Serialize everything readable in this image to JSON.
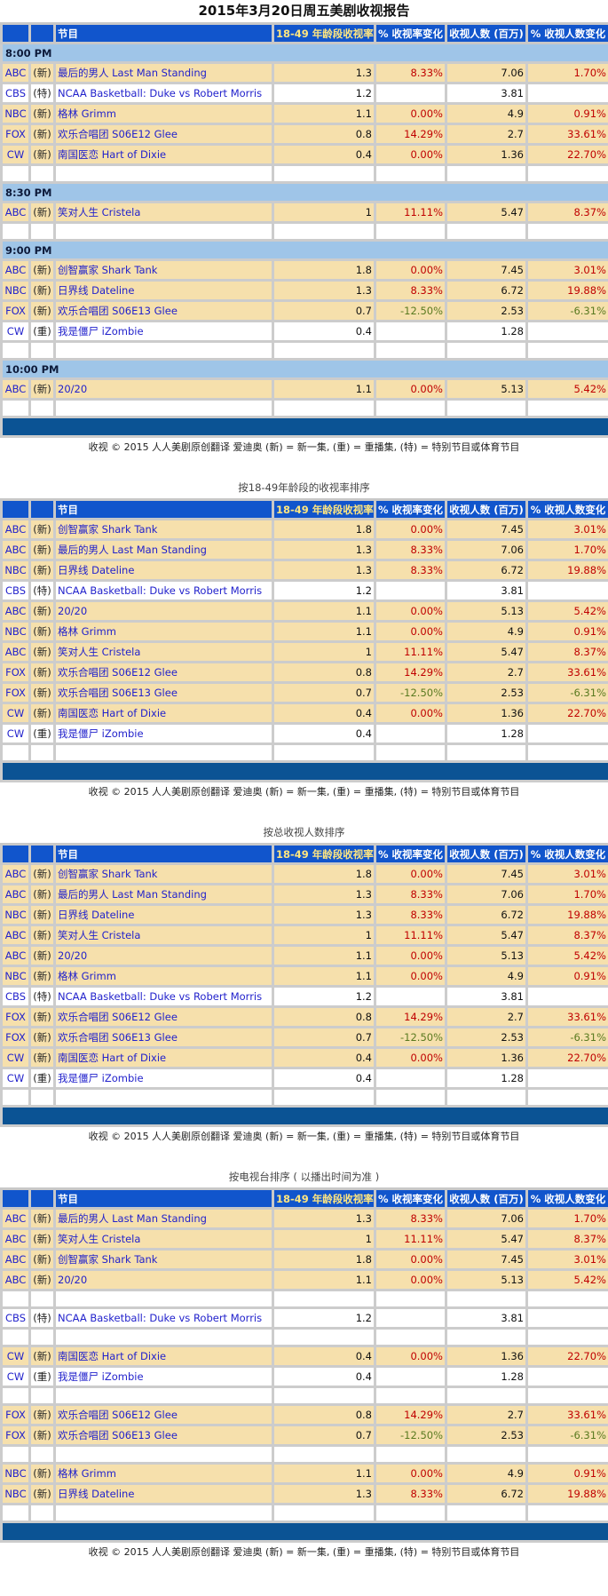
{
  "page_title": "2015年3月20日周五美剧收视报告",
  "headers": [
    "",
    "",
    "节目",
    "18-49 年龄段收视率",
    "% 收视率变化",
    "收视人数 (百万)",
    "% 收视人数变化"
  ],
  "footer_note": "收视 © 2015 人人美剧原创翻译 爱迪奥  (新) = 新一集, (重) = 重播集, (特) = 特别节目或体育节目",
  "colors": {
    "header_bg": "#1155cc",
    "slot_bg": "#9fc5e8",
    "row_bg": "#f6e0ac",
    "bar_bg": "#0b5394",
    "positive": "#c00000",
    "negative": "#5a7a20",
    "link": "#2222cc"
  },
  "tables": [
    {
      "title": "",
      "rows": [
        {
          "type": "slot",
          "label": "8:00 PM"
        },
        {
          "type": "row",
          "net": "ABC",
          "tag": "(新)",
          "prog": "最后的男人 Last Man Standing",
          "rating": "1.3",
          "rchg": "8.33%",
          "viewers": "7.06",
          "vchg": "1.70%"
        },
        {
          "type": "row",
          "plain": true,
          "net": "CBS",
          "tag": "(特)",
          "prog": "NCAA Basketball: Duke vs Robert Morris",
          "rating": "1.2",
          "rchg": "",
          "viewers": "3.81",
          "vchg": ""
        },
        {
          "type": "row",
          "net": "NBC",
          "tag": "(新)",
          "prog": "格林 Grimm",
          "rating": "1.1",
          "rchg": "0.00%",
          "viewers": "4.9",
          "vchg": "0.91%"
        },
        {
          "type": "row",
          "net": "FOX",
          "tag": "(新)",
          "prog": "欢乐合唱团 S06E12 Glee",
          "rating": "0.8",
          "rchg": "14.29%",
          "viewers": "2.7",
          "vchg": "33.61%"
        },
        {
          "type": "row",
          "net": "CW",
          "tag": "(新)",
          "prog": "南国医恋 Hart of Dixie",
          "rating": "0.4",
          "rchg": "0.00%",
          "viewers": "1.36",
          "vchg": "22.70%"
        },
        {
          "type": "empty"
        },
        {
          "type": "slot",
          "label": "8:30 PM"
        },
        {
          "type": "row",
          "net": "ABC",
          "tag": "(新)",
          "prog": "笑对人生 Cristela",
          "rating": "1",
          "rchg": "11.11%",
          "viewers": "5.47",
          "vchg": "8.37%"
        },
        {
          "type": "empty"
        },
        {
          "type": "slot",
          "label": "9:00 PM"
        },
        {
          "type": "row",
          "net": "ABC",
          "tag": "(新)",
          "prog": "创智赢家 Shark Tank",
          "rating": "1.8",
          "rchg": "0.00%",
          "viewers": "7.45",
          "vchg": "3.01%"
        },
        {
          "type": "row",
          "net": "NBC",
          "tag": "(新)",
          "prog": "日界线 Dateline",
          "rating": "1.3",
          "rchg": "8.33%",
          "viewers": "6.72",
          "vchg": "19.88%"
        },
        {
          "type": "row",
          "net": "FOX",
          "tag": "(新)",
          "prog": "欢乐合唱团 S06E13 Glee",
          "rating": "0.7",
          "rchg": "-12.50%",
          "viewers": "2.53",
          "vchg": "-6.31%"
        },
        {
          "type": "row",
          "plain": true,
          "net": "CW",
          "tag": "(重)",
          "prog": "我是僵尸 iZombie",
          "rating": "0.4",
          "rchg": "",
          "viewers": "1.28",
          "vchg": ""
        },
        {
          "type": "empty"
        },
        {
          "type": "slot",
          "label": "10:00 PM"
        },
        {
          "type": "row",
          "net": "ABC",
          "tag": "(新)",
          "prog": "20/20",
          "rating": "1.1",
          "rchg": "0.00%",
          "viewers": "5.13",
          "vchg": "5.42%"
        },
        {
          "type": "empty"
        },
        {
          "type": "bar"
        }
      ]
    },
    {
      "title": "按18-49年龄段的收视率排序",
      "rows": [
        {
          "type": "row",
          "net": "ABC",
          "tag": "(新)",
          "prog": "创智赢家 Shark Tank",
          "rating": "1.8",
          "rchg": "0.00%",
          "viewers": "7.45",
          "vchg": "3.01%"
        },
        {
          "type": "row",
          "net": "ABC",
          "tag": "(新)",
          "prog": "最后的男人 Last Man Standing",
          "rating": "1.3",
          "rchg": "8.33%",
          "viewers": "7.06",
          "vchg": "1.70%"
        },
        {
          "type": "row",
          "net": "NBC",
          "tag": "(新)",
          "prog": "日界线 Dateline",
          "rating": "1.3",
          "rchg": "8.33%",
          "viewers": "6.72",
          "vchg": "19.88%"
        },
        {
          "type": "row",
          "plain": true,
          "net": "CBS",
          "tag": "(特)",
          "prog": "NCAA Basketball: Duke vs Robert Morris",
          "rating": "1.2",
          "rchg": "",
          "viewers": "3.81",
          "vchg": ""
        },
        {
          "type": "row",
          "net": "ABC",
          "tag": "(新)",
          "prog": "20/20",
          "rating": "1.1",
          "rchg": "0.00%",
          "viewers": "5.13",
          "vchg": "5.42%"
        },
        {
          "type": "row",
          "net": "NBC",
          "tag": "(新)",
          "prog": "格林 Grimm",
          "rating": "1.1",
          "rchg": "0.00%",
          "viewers": "4.9",
          "vchg": "0.91%"
        },
        {
          "type": "row",
          "net": "ABC",
          "tag": "(新)",
          "prog": "笑对人生 Cristela",
          "rating": "1",
          "rchg": "11.11%",
          "viewers": "5.47",
          "vchg": "8.37%"
        },
        {
          "type": "row",
          "net": "FOX",
          "tag": "(新)",
          "prog": "欢乐合唱团 S06E12 Glee",
          "rating": "0.8",
          "rchg": "14.29%",
          "viewers": "2.7",
          "vchg": "33.61%"
        },
        {
          "type": "row",
          "net": "FOX",
          "tag": "(新)",
          "prog": "欢乐合唱团 S06E13 Glee",
          "rating": "0.7",
          "rchg": "-12.50%",
          "viewers": "2.53",
          "vchg": "-6.31%"
        },
        {
          "type": "row",
          "net": "CW",
          "tag": "(新)",
          "prog": "南国医恋 Hart of Dixie",
          "rating": "0.4",
          "rchg": "0.00%",
          "viewers": "1.36",
          "vchg": "22.70%"
        },
        {
          "type": "row",
          "plain": true,
          "net": "CW",
          "tag": "(重)",
          "prog": "我是僵尸 iZombie",
          "rating": "0.4",
          "rchg": "",
          "viewers": "1.28",
          "vchg": ""
        },
        {
          "type": "empty"
        },
        {
          "type": "bar"
        }
      ]
    },
    {
      "title": "按总收视人数排序",
      "rows": [
        {
          "type": "row",
          "net": "ABC",
          "tag": "(新)",
          "prog": "创智赢家 Shark Tank",
          "rating": "1.8",
          "rchg": "0.00%",
          "viewers": "7.45",
          "vchg": "3.01%"
        },
        {
          "type": "row",
          "net": "ABC",
          "tag": "(新)",
          "prog": "最后的男人 Last Man Standing",
          "rating": "1.3",
          "rchg": "8.33%",
          "viewers": "7.06",
          "vchg": "1.70%"
        },
        {
          "type": "row",
          "net": "NBC",
          "tag": "(新)",
          "prog": "日界线 Dateline",
          "rating": "1.3",
          "rchg": "8.33%",
          "viewers": "6.72",
          "vchg": "19.88%"
        },
        {
          "type": "row",
          "net": "ABC",
          "tag": "(新)",
          "prog": "笑对人生 Cristela",
          "rating": "1",
          "rchg": "11.11%",
          "viewers": "5.47",
          "vchg": "8.37%"
        },
        {
          "type": "row",
          "net": "ABC",
          "tag": "(新)",
          "prog": "20/20",
          "rating": "1.1",
          "rchg": "0.00%",
          "viewers": "5.13",
          "vchg": "5.42%"
        },
        {
          "type": "row",
          "net": "NBC",
          "tag": "(新)",
          "prog": "格林 Grimm",
          "rating": "1.1",
          "rchg": "0.00%",
          "viewers": "4.9",
          "vchg": "0.91%"
        },
        {
          "type": "row",
          "plain": true,
          "net": "CBS",
          "tag": "(特)",
          "prog": "NCAA Basketball: Duke vs Robert Morris",
          "rating": "1.2",
          "rchg": "",
          "viewers": "3.81",
          "vchg": ""
        },
        {
          "type": "row",
          "net": "FOX",
          "tag": "(新)",
          "prog": "欢乐合唱团 S06E12 Glee",
          "rating": "0.8",
          "rchg": "14.29%",
          "viewers": "2.7",
          "vchg": "33.61%"
        },
        {
          "type": "row",
          "net": "FOX",
          "tag": "(新)",
          "prog": "欢乐合唱团 S06E13 Glee",
          "rating": "0.7",
          "rchg": "-12.50%",
          "viewers": "2.53",
          "vchg": "-6.31%"
        },
        {
          "type": "row",
          "net": "CW",
          "tag": "(新)",
          "prog": "南国医恋 Hart of Dixie",
          "rating": "0.4",
          "rchg": "0.00%",
          "viewers": "1.36",
          "vchg": "22.70%"
        },
        {
          "type": "row",
          "plain": true,
          "net": "CW",
          "tag": "(重)",
          "prog": "我是僵尸 iZombie",
          "rating": "0.4",
          "rchg": "",
          "viewers": "1.28",
          "vchg": ""
        },
        {
          "type": "empty"
        },
        {
          "type": "bar"
        }
      ]
    },
    {
      "title": "按电视台排序 ( 以播出时间为准 )",
      "rows": [
        {
          "type": "row",
          "net": "ABC",
          "tag": "(新)",
          "prog": "最后的男人 Last Man Standing",
          "rating": "1.3",
          "rchg": "8.33%",
          "viewers": "7.06",
          "vchg": "1.70%"
        },
        {
          "type": "row",
          "net": "ABC",
          "tag": "(新)",
          "prog": "笑对人生 Cristela",
          "rating": "1",
          "rchg": "11.11%",
          "viewers": "5.47",
          "vchg": "8.37%"
        },
        {
          "type": "row",
          "net": "ABC",
          "tag": "(新)",
          "prog": "创智赢家 Shark Tank",
          "rating": "1.8",
          "rchg": "0.00%",
          "viewers": "7.45",
          "vchg": "3.01%"
        },
        {
          "type": "row",
          "net": "ABC",
          "tag": "(新)",
          "prog": "20/20",
          "rating": "1.1",
          "rchg": "0.00%",
          "viewers": "5.13",
          "vchg": "5.42%"
        },
        {
          "type": "empty"
        },
        {
          "type": "row",
          "plain": true,
          "net": "CBS",
          "tag": "(特)",
          "prog": "NCAA Basketball: Duke vs Robert Morris",
          "rating": "1.2",
          "rchg": "",
          "viewers": "3.81",
          "vchg": ""
        },
        {
          "type": "empty"
        },
        {
          "type": "row",
          "net": "CW",
          "tag": "(新)",
          "prog": "南国医恋 Hart of Dixie",
          "rating": "0.4",
          "rchg": "0.00%",
          "viewers": "1.36",
          "vchg": "22.70%"
        },
        {
          "type": "row",
          "plain": true,
          "net": "CW",
          "tag": "(重)",
          "prog": "我是僵尸 iZombie",
          "rating": "0.4",
          "rchg": "",
          "viewers": "1.28",
          "vchg": ""
        },
        {
          "type": "empty"
        },
        {
          "type": "row",
          "net": "FOX",
          "tag": "(新)",
          "prog": "欢乐合唱团 S06E12 Glee",
          "rating": "0.8",
          "rchg": "14.29%",
          "viewers": "2.7",
          "vchg": "33.61%"
        },
        {
          "type": "row",
          "net": "FOX",
          "tag": "(新)",
          "prog": "欢乐合唱团 S06E13 Glee",
          "rating": "0.7",
          "rchg": "-12.50%",
          "viewers": "2.53",
          "vchg": "-6.31%"
        },
        {
          "type": "empty"
        },
        {
          "type": "row",
          "net": "NBC",
          "tag": "(新)",
          "prog": "格林 Grimm",
          "rating": "1.1",
          "rchg": "0.00%",
          "viewers": "4.9",
          "vchg": "0.91%"
        },
        {
          "type": "row",
          "net": "NBC",
          "tag": "(新)",
          "prog": "日界线 Dateline",
          "rating": "1.3",
          "rchg": "8.33%",
          "viewers": "6.72",
          "vchg": "19.88%"
        },
        {
          "type": "empty"
        },
        {
          "type": "bar"
        }
      ]
    }
  ]
}
